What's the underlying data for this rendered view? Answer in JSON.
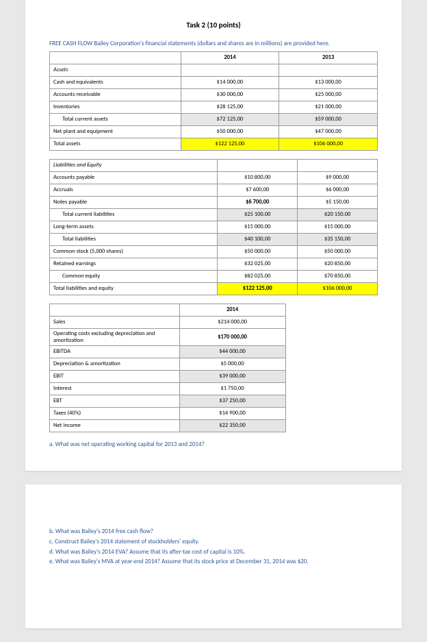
{
  "title": "Task 2 (10 points)",
  "intro": "FREE CASH FLOW Bailey Corporation's financial statements (dollars and shares are in millions) are provided here.",
  "t1": {
    "h": [
      "",
      "2014",
      "2013"
    ],
    "r": [
      {
        "l": "Assets",
        "c": "italic",
        "a": "",
        "b": ""
      },
      {
        "l": "Cash and equivalents",
        "a": "$14 000,00",
        "b": "$13 000,00"
      },
      {
        "l": "Accounts receivable",
        "a": "$30 000,00",
        "b": "$25 000,00"
      },
      {
        "l": "Inventories",
        "a": "$28 125,00",
        "b": "$21 000,00"
      },
      {
        "l": "Total current assets",
        "c": "indent",
        "rc": "grey",
        "a": "$72 125,00",
        "b": "$59 000,00"
      },
      {
        "l": "Net plant and equipment",
        "a": "$50 000,00",
        "b": "$47 000,00"
      },
      {
        "l": "Total assets",
        "rc": "yellow",
        "a": "$122 125,00",
        "b": "$106 000,00"
      }
    ]
  },
  "t2": {
    "r": [
      {
        "l": "Liabilities and Equity",
        "c": "italic",
        "a": "",
        "b": ""
      },
      {
        "l": "Accounts payable",
        "a": "$10 800,00",
        "b": "$9 000,00"
      },
      {
        "l": "Accruals",
        "a": "$7 600,00",
        "b": "$6 000,00"
      },
      {
        "l": "Notes payable",
        "a": "$6 700,00",
        "ac": "bold",
        "b": "$5 150,00"
      },
      {
        "l": "Total current liabilities",
        "c": "indent",
        "rc": "grey",
        "a": "$25 100,00",
        "b": "$20 150,00"
      },
      {
        "l": "Long-term assets",
        "a": "$15 000,00",
        "b": "$15 000,00"
      },
      {
        "l": "Total liabilities",
        "c": "indent",
        "rc": "grey",
        "a": "$40 100,00",
        "b": "$35 150,00"
      },
      {
        "l": "Common stock (5,000 shares)",
        "a": "$50 000,00",
        "b": "$50 000,00"
      },
      {
        "l": "Retained earnings",
        "a": "$32 025,00",
        "b": "$20 850,00"
      },
      {
        "l": "Common equity",
        "c": "indent",
        "a": "$82 025,00",
        "b": "$70 850,00"
      },
      {
        "l": "Total liabilities and equity",
        "rc": "yellow",
        "a": "$122 125,00",
        "ac": "bold",
        "b": "$106 000,00"
      }
    ]
  },
  "t3": {
    "h": [
      "",
      "2014"
    ],
    "r": [
      {
        "l": "Sales",
        "a": "$214 000,00"
      },
      {
        "l": "Operating costs excluding depreciation and amortization",
        "a": "$170 000,00",
        "ac": "bold"
      },
      {
        "l": "EBITDA",
        "rc": "grey",
        "a": "$44 000,00"
      },
      {
        "l": "Depreciation & amortization",
        "a": "$5 000,00"
      },
      {
        "l": "EBIT",
        "rc": "grey",
        "a": "$39 000,00"
      },
      {
        "l": "Interest",
        "a": "$1 750,00"
      },
      {
        "l": "EBT",
        "rc": "grey",
        "a": "$37 250,00"
      },
      {
        "l": "Taxes (40%)",
        "a": "$14 900,00"
      },
      {
        "l": "Net income",
        "rc": "grey",
        "a": "$22 350,00"
      }
    ]
  },
  "qa": "a. What was net operating working capital for 2013 and 2014?",
  "qb": "b. What was Bailey's 2014 free cash flow?",
  "qc": "c. Construct Bailey's 2014 statement of stockholders' equity.",
  "qd": "d. What was Bailey's 2014 EVA? Assume that its after-tax cost of capital is 10%.",
  "qe": "e. What was Bailey's MVA at year-end 2014? Assume that its stock price at December 31, 2014 was $20."
}
